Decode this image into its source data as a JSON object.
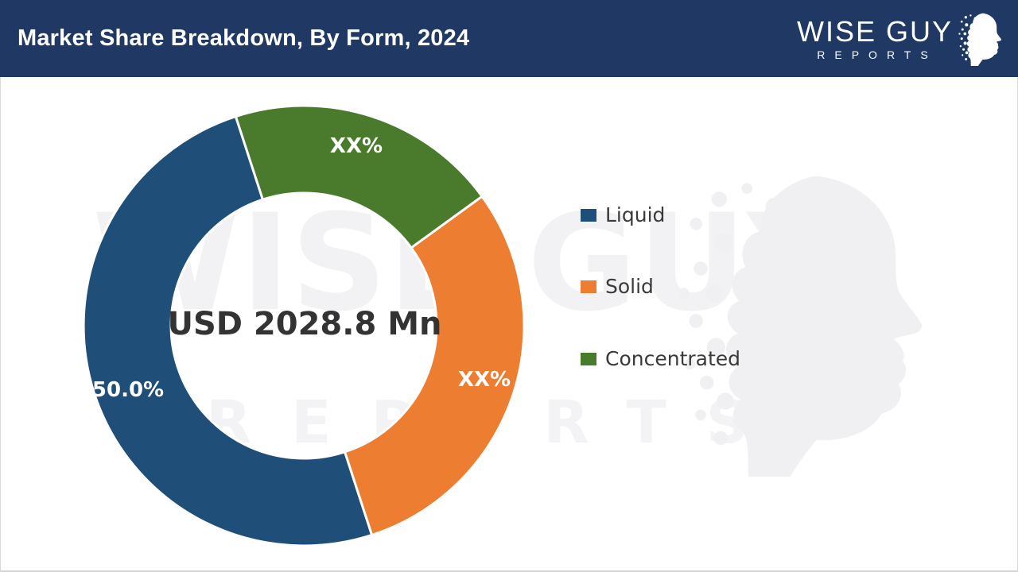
{
  "header": {
    "title": "Market Share Breakdown, By Form, 2024",
    "bg_color": "#1F3864",
    "logo": {
      "line1": "WISE GUY",
      "line2": "REPORTS"
    }
  },
  "watermark": {
    "line1": "WISE GUY",
    "line2": "REPORTS"
  },
  "chart_data": {
    "type": "pie",
    "subtype": "donut",
    "title": "Market Share Breakdown, By Form, 2024",
    "center_label": "USD 2028.8 Mn",
    "start_angle_deg": 108,
    "direction": "counterclockwise",
    "donut_hole_ratio": 0.6,
    "legend_position": "right",
    "segments": [
      {
        "label": "Liquid",
        "value_pct": 50.0,
        "display": "50.0%",
        "color": "#1F4E79"
      },
      {
        "label": "Solid",
        "value_pct": 30.0,
        "display": "XX%",
        "color": "#ED7D31"
      },
      {
        "label": "Concentrated",
        "value_pct": 20.0,
        "display": "XX%",
        "color": "#4A7A2B"
      }
    ]
  }
}
